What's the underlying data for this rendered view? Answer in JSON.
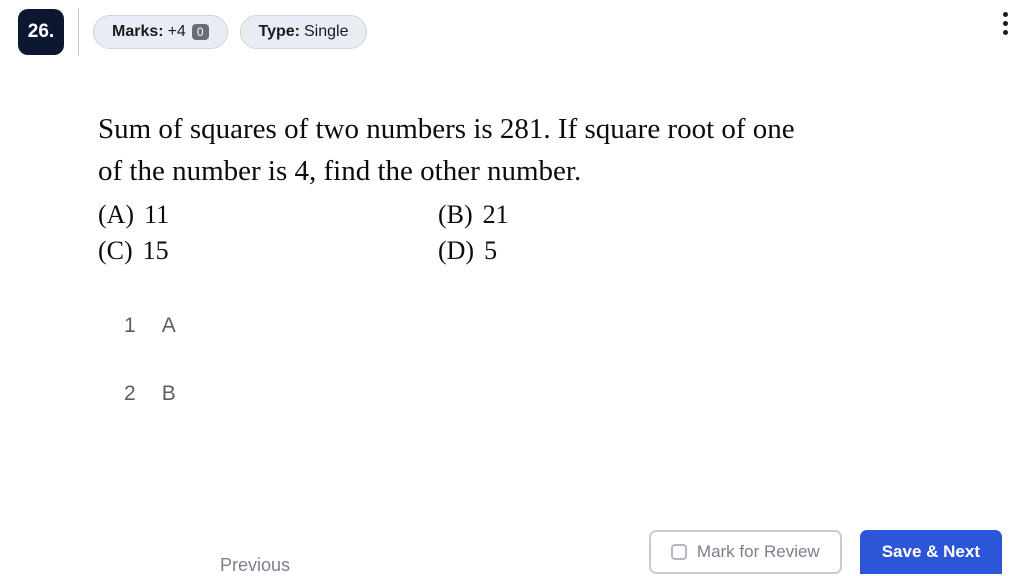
{
  "header": {
    "question_number": "26.",
    "marks_label": "Marks:",
    "marks_value": "+4",
    "marks_badge": "0",
    "type_label": "Type:",
    "type_value": "Single"
  },
  "question": {
    "text": "Sum of squares of two numbers is 281. If square root of one of the number is 4, find the other number.",
    "options": {
      "a_letter": "(A)",
      "a_text": "11",
      "b_letter": "(B)",
      "b_text": "21",
      "c_letter": "(C)",
      "c_text": "15",
      "d_letter": "(D)",
      "d_text": "5"
    }
  },
  "answer_rows": {
    "r1_num": "1",
    "r1_letter": "A",
    "r2_num": "2",
    "r2_letter": "B"
  },
  "footer": {
    "previous": "Previous",
    "mark_for_review": "Mark for Review",
    "save_next": "Save & Next"
  },
  "colors": {
    "number_bg": "#0d1730",
    "save_bg": "#2d55d8",
    "pill_bg": "#e9ecf2",
    "pill_border": "#d0d3dd"
  }
}
